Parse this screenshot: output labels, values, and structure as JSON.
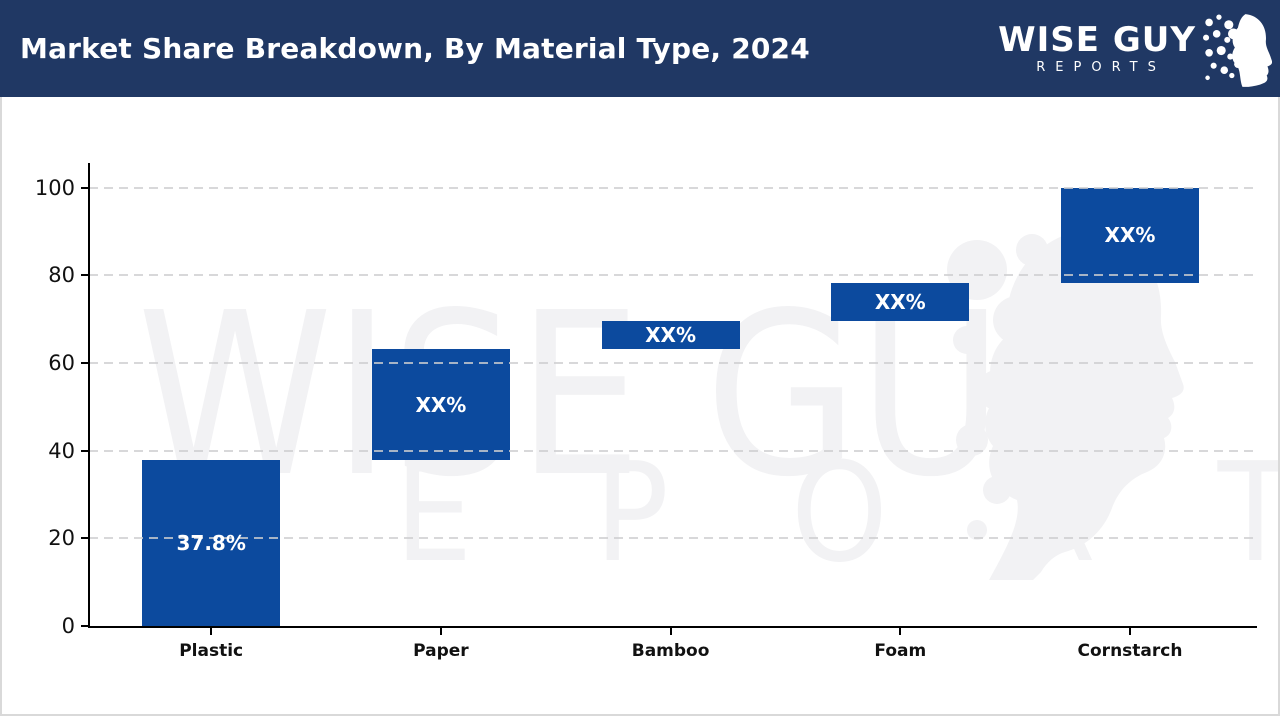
{
  "header": {
    "title": "Market Share Breakdown, By Material Type, 2024",
    "logo": {
      "line1": "WISE GUY",
      "line2": "REPORTS"
    }
  },
  "watermark": {
    "line1": "WISE GUY",
    "line2": "R E P O R T S"
  },
  "colors": {
    "header_bg": "#203864",
    "bar_blue": "#0C4A9E",
    "bar_label_text": "#ffffff",
    "gridline": "#d2d2d4",
    "axis": "#000000",
    "watermark": "#f2f2f4",
    "panel_border": "#d9d9d9"
  },
  "chart_data": {
    "type": "bar",
    "subtype": "waterfall",
    "title": "Market Share Breakdown, By Material Type, 2024",
    "categories": [
      "Plastic",
      "Paper",
      "Bamboo",
      "Foam",
      "Cornstarch"
    ],
    "series": [
      {
        "name": "Market Share (%)",
        "segments": [
          {
            "category": "Plastic",
            "from": 0,
            "to": 37.8,
            "label": "37.8%"
          },
          {
            "category": "Paper",
            "from": 37.8,
            "to": 63.2,
            "label": "XX%"
          },
          {
            "category": "Bamboo",
            "from": 63.2,
            "to": 69.5,
            "label": "XX%"
          },
          {
            "category": "Foam",
            "from": 69.5,
            "to": 78.3,
            "label": "XX%"
          },
          {
            "category": "Cornstarch",
            "from": 78.3,
            "to": 100,
            "label": "XX%"
          }
        ]
      }
    ],
    "xlabel": "",
    "ylabel": "",
    "yticks": [
      0,
      20,
      40,
      60,
      80,
      100
    ],
    "ylim": [
      0,
      105
    ],
    "grid": "horizontal dashed, drawn above bars",
    "legend": "none"
  }
}
